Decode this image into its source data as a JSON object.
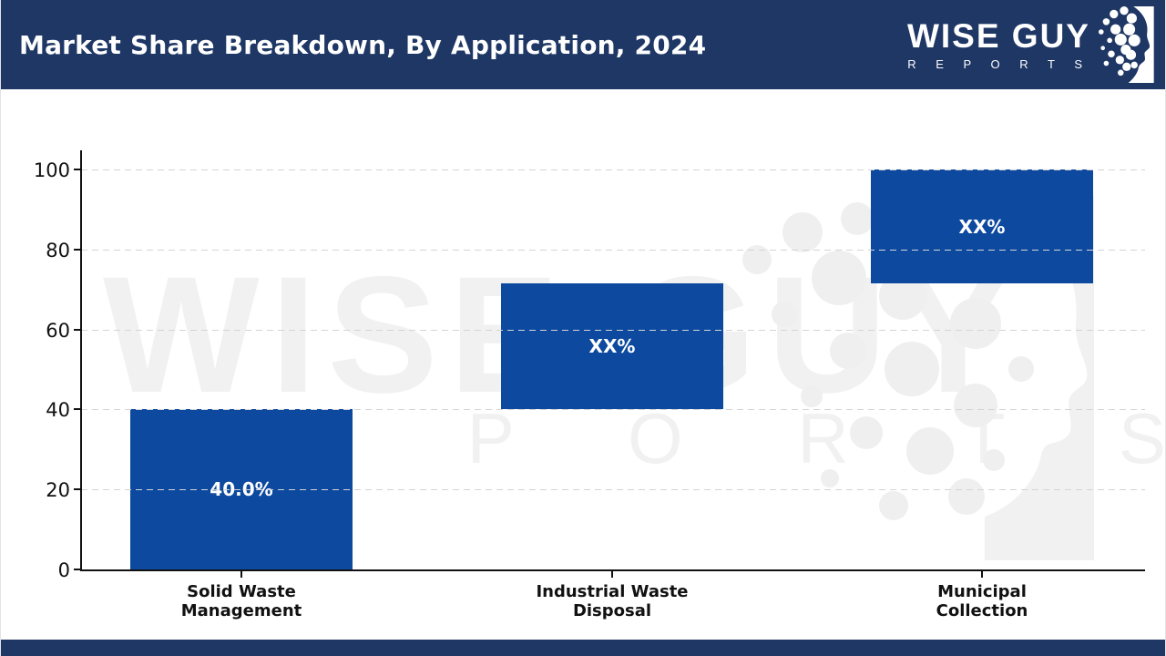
{
  "header": {
    "title": "Market Share Breakdown, By Application, 2024",
    "background": "#1f3765",
    "logo": {
      "line1": "WISE GUY",
      "line2": "R E P O R T S"
    }
  },
  "watermark": {
    "line1": "WISE GUY",
    "line2": "R E P O R T S",
    "color": "#f1f1f1"
  },
  "chart_data": {
    "type": "bar",
    "subtype": "stepped-waterfall",
    "title": "Market Share Breakdown, By Application, 2024",
    "categories": [
      "Solid Waste Management",
      "Industrial Waste Disposal",
      "Municipal Collection"
    ],
    "categories_lines": [
      [
        "Solid Waste",
        "Management"
      ],
      [
        "Industrial Waste",
        "Disposal"
      ],
      [
        "Municipal",
        "Collection"
      ]
    ],
    "segments": [
      {
        "category": "Solid Waste Management",
        "start": 0,
        "end": 40,
        "value": 40,
        "label": "40.0%"
      },
      {
        "category": "Industrial Waste Disposal",
        "start": 40,
        "end": 71.5,
        "value": 31.5,
        "label": "XX%"
      },
      {
        "category": "Municipal Collection",
        "start": 71.5,
        "end": 100,
        "value": 28.5,
        "label": "XX%"
      }
    ],
    "yticks": [
      0,
      20,
      40,
      60,
      80,
      100
    ],
    "ylim": [
      0,
      104
    ],
    "xlabel": "",
    "ylabel": "",
    "legend": "none",
    "grid": "horizontal-dashed",
    "bar_color": "#0d4a9f",
    "bar_label_color": "#ffffff",
    "axis_color": "#111111",
    "gridline_color": "#d4d4d4"
  },
  "footer": {
    "background": "#1f3765"
  }
}
